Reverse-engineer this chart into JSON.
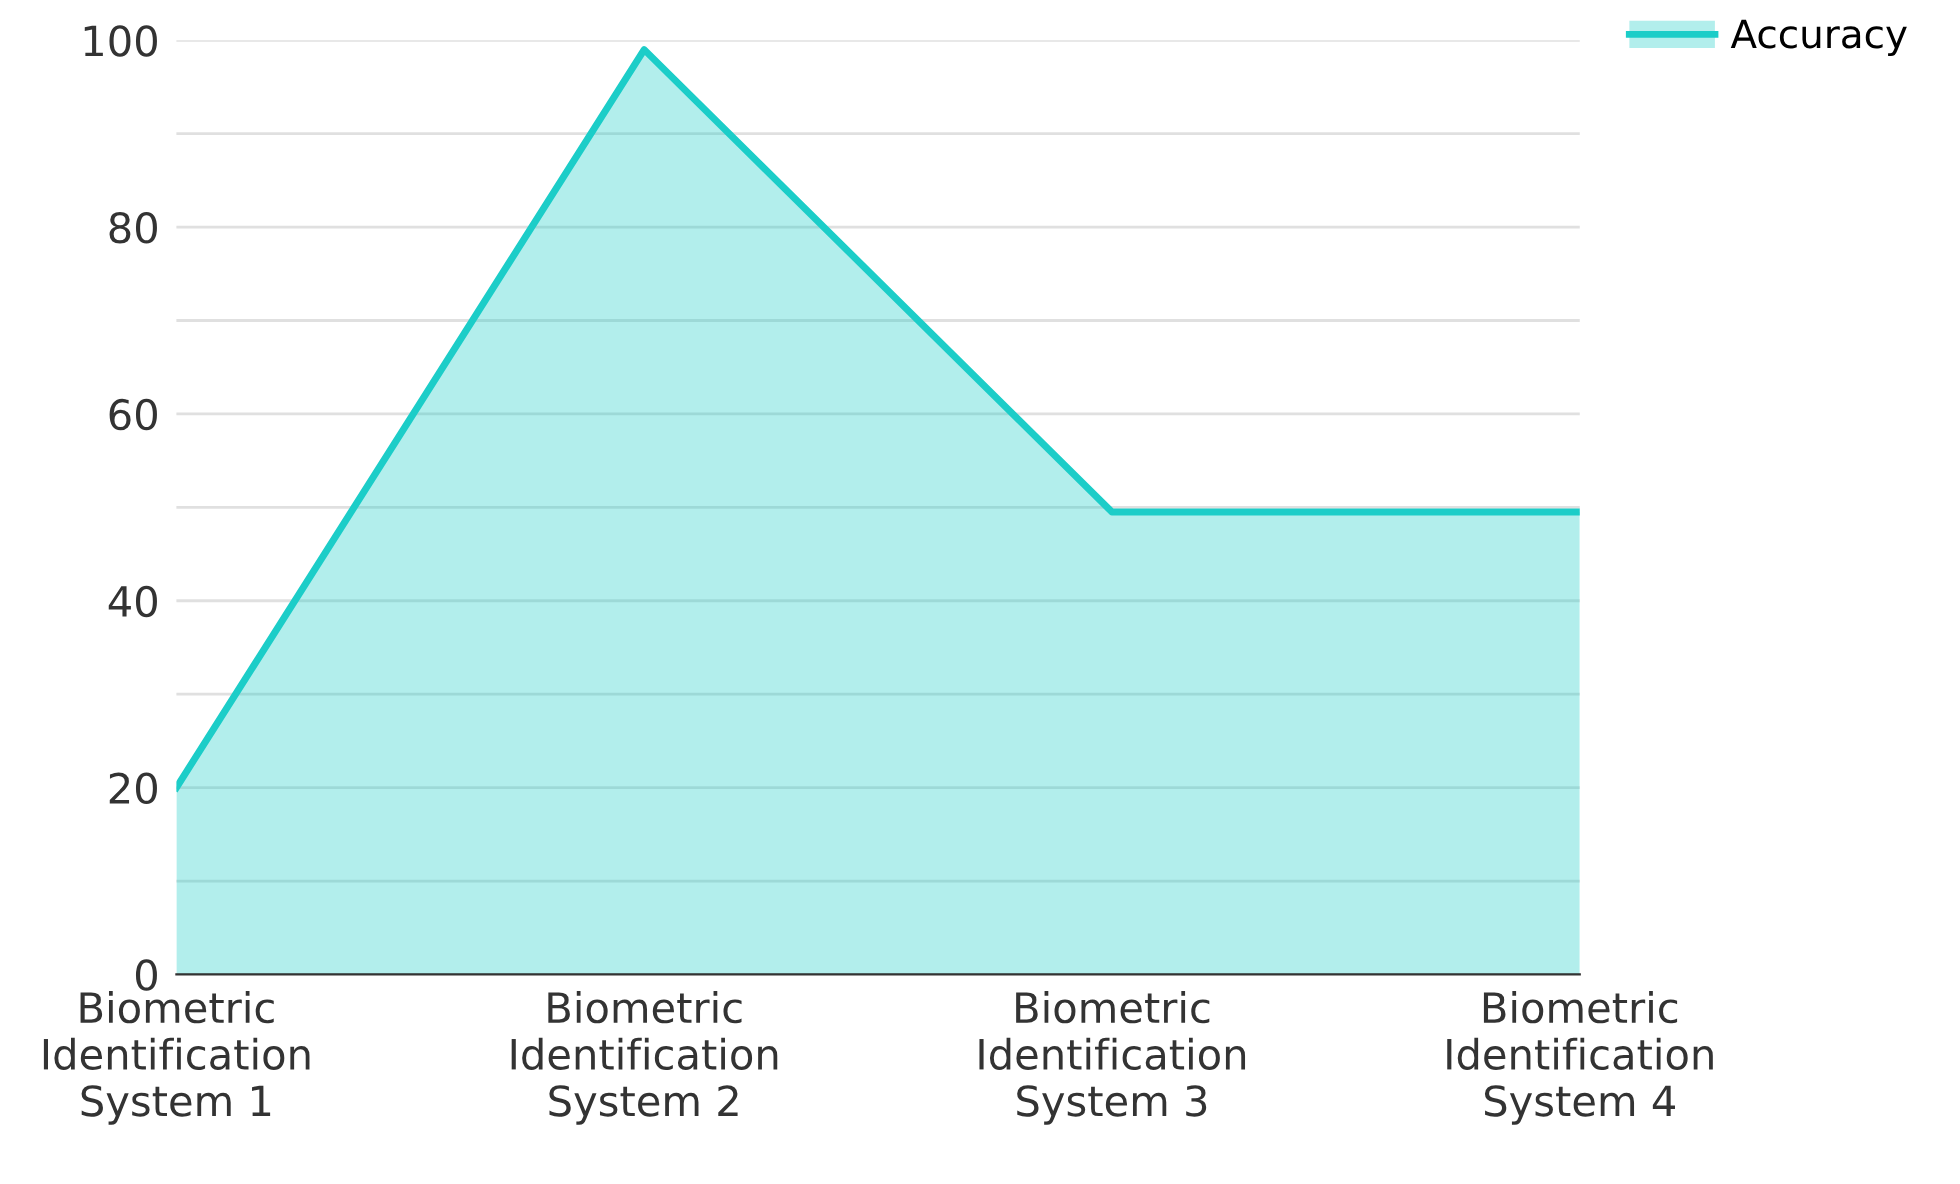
{
  "chart_data": {
    "type": "area",
    "categories": [
      "Biometric\nIdentification\nSystem 1",
      "Biometric\nIdentification\nSystem 2",
      "Biometric\nIdentification\nSystem 3",
      "Biometric\nIdentification\nSystem 4"
    ],
    "series": [
      {
        "name": "Accuracy",
        "color": "#1ccdc8",
        "values": [
          20,
          99,
          49.5,
          49.5
        ]
      }
    ],
    "ylim": [
      0,
      100
    ],
    "yticks": [
      0,
      {
        "value": 10,
        "label": null
      },
      20,
      {
        "value": 30,
        "label": null
      },
      40,
      {
        "value": 50,
        "label": null
      },
      60,
      {
        "value": 70,
        "label": null
      },
      80,
      {
        "value": 90,
        "label": null
      },
      100
    ],
    "grid": "y",
    "legend": "top right"
  }
}
